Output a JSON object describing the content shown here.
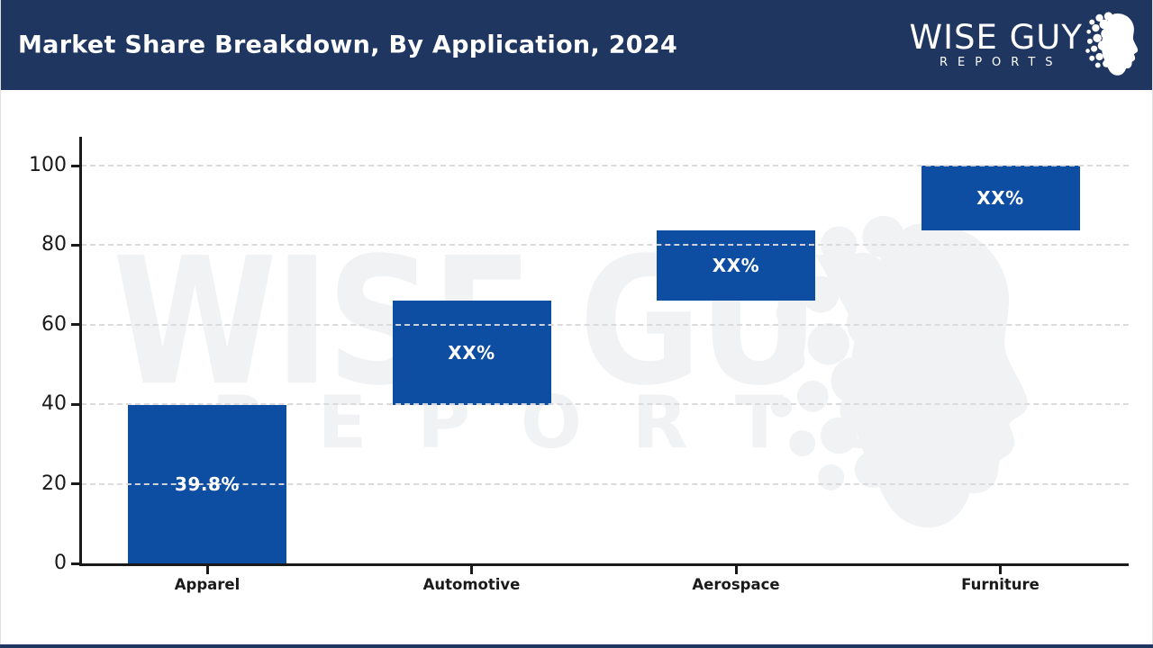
{
  "header": {
    "title": "Market Share Breakdown, By Application, 2024",
    "logo": {
      "line1": "WISE GUY",
      "line2": "REPORTS"
    }
  },
  "watermark": {
    "line1": "WISE GUY",
    "line2": "REPORTS"
  },
  "colors": {
    "header_bg": "#1f3660",
    "bar": "#0d4da2",
    "bar_label": "#ffffff",
    "grid": "#d9d9db",
    "axis": "#1a1a1a",
    "watermark": "#f1f2f4",
    "title_text": "#ffffff"
  },
  "chart_data": {
    "type": "bar",
    "subtype": "waterfall",
    "title": "Market Share Breakdown, By Application, 2024",
    "categories": [
      "Apparel",
      "Automotive",
      "Aerospace",
      "Furniture"
    ],
    "segments": [
      {
        "category": "Apparel",
        "start": 0,
        "end": 39.8,
        "value": 39.8,
        "label": "39.8%"
      },
      {
        "category": "Automotive",
        "start": 39.8,
        "end": 66.1,
        "value": 26.3,
        "label": "XX%"
      },
      {
        "category": "Aerospace",
        "start": 66.1,
        "end": 83.8,
        "value": 17.7,
        "label": "XX%"
      },
      {
        "category": "Furniture",
        "start": 83.8,
        "end": 100,
        "value": 16.2,
        "label": "XX%"
      }
    ],
    "xlabel": "",
    "ylabel": "",
    "ylim": [
      0,
      105
    ],
    "yticks": [
      0,
      20,
      40,
      60,
      80,
      100
    ],
    "grid": "horizontal-dashed, drawn above bars",
    "legend": "none",
    "bar_color": "#0d4da2",
    "value_label_color": "#ffffff"
  }
}
